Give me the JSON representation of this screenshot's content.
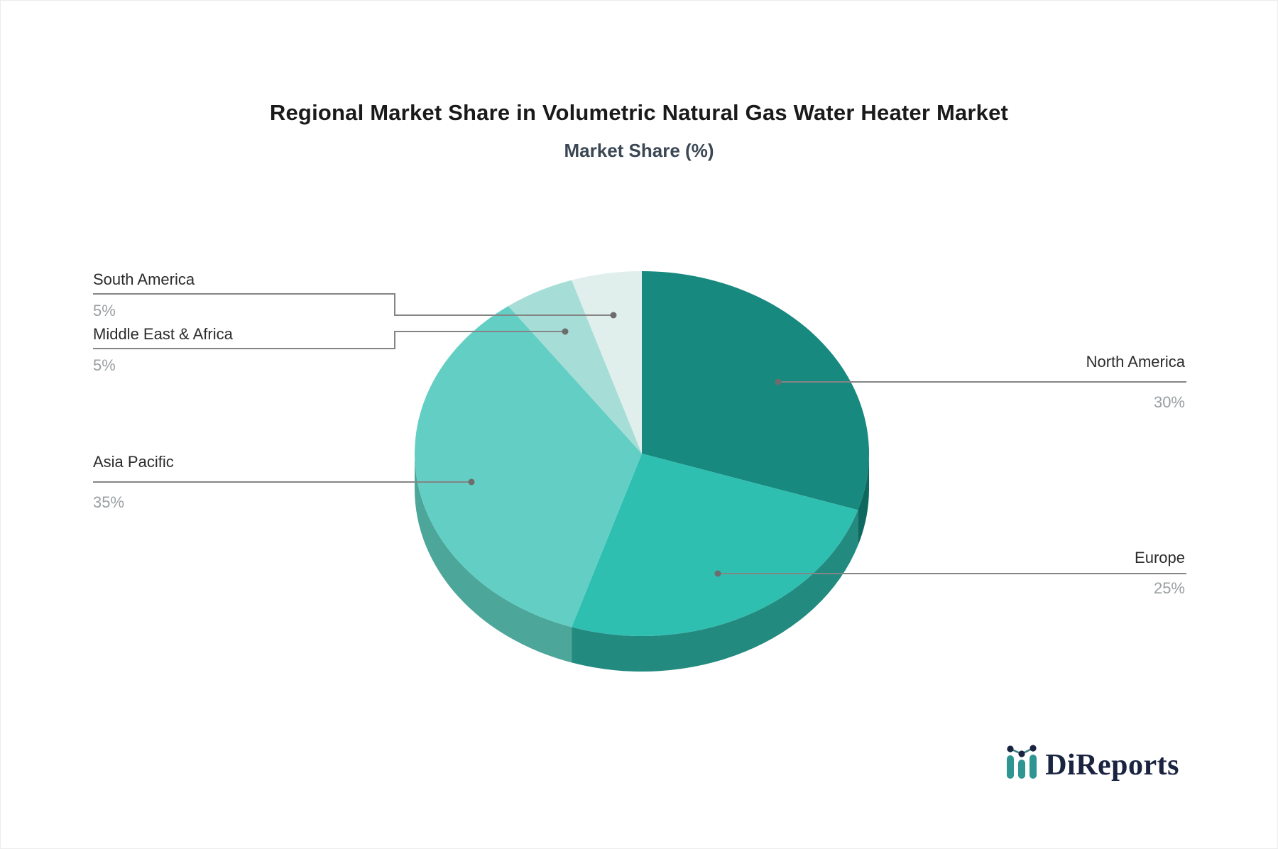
{
  "title": "Regional Market Share in Volumetric Natural Gas Water Heater Market",
  "subtitle": "Market Share (%)",
  "logo": {
    "text": "DiReports",
    "icon": "bar-line-chart-icon"
  },
  "colors": {
    "title_text": "#1a1a1a",
    "subtitle_text": "#3b4754",
    "label_text": "#2b2b2b",
    "value_text": "#999fa2",
    "leader_line": "#858585",
    "leader_dot": "#6d6d6d",
    "logo_navy": "#1a2340",
    "logo_teal": "#2f9593"
  },
  "chart_data": {
    "type": "pie",
    "title": "Regional Market Share in Volumetric Natural Gas Water Heater Market",
    "subtitle": "Market Share (%)",
    "unit": "%",
    "effect": "3d",
    "start": "top",
    "direction": "clockwise",
    "legend_position": "leader-lines",
    "slices": [
      {
        "label": "North America",
        "value": 30,
        "display": "30%",
        "color": "#17897e",
        "side_color": "#0f685f"
      },
      {
        "label": "Europe",
        "value": 25,
        "display": "25%",
        "color": "#2fbfb1",
        "side_color": "#238a7f"
      },
      {
        "label": "Asia Pacific",
        "value": 35,
        "display": "35%",
        "color": "#63cfc4",
        "side_color": "#4da69a"
      },
      {
        "label": "Middle East & Africa",
        "value": 5,
        "display": "5%",
        "color": "#a6ded7",
        "side_color": "#8cc4bc"
      },
      {
        "label": "South America",
        "value": 5,
        "display": "5%",
        "color": "#e0efec",
        "side_color": "#c2d8d4"
      }
    ]
  }
}
